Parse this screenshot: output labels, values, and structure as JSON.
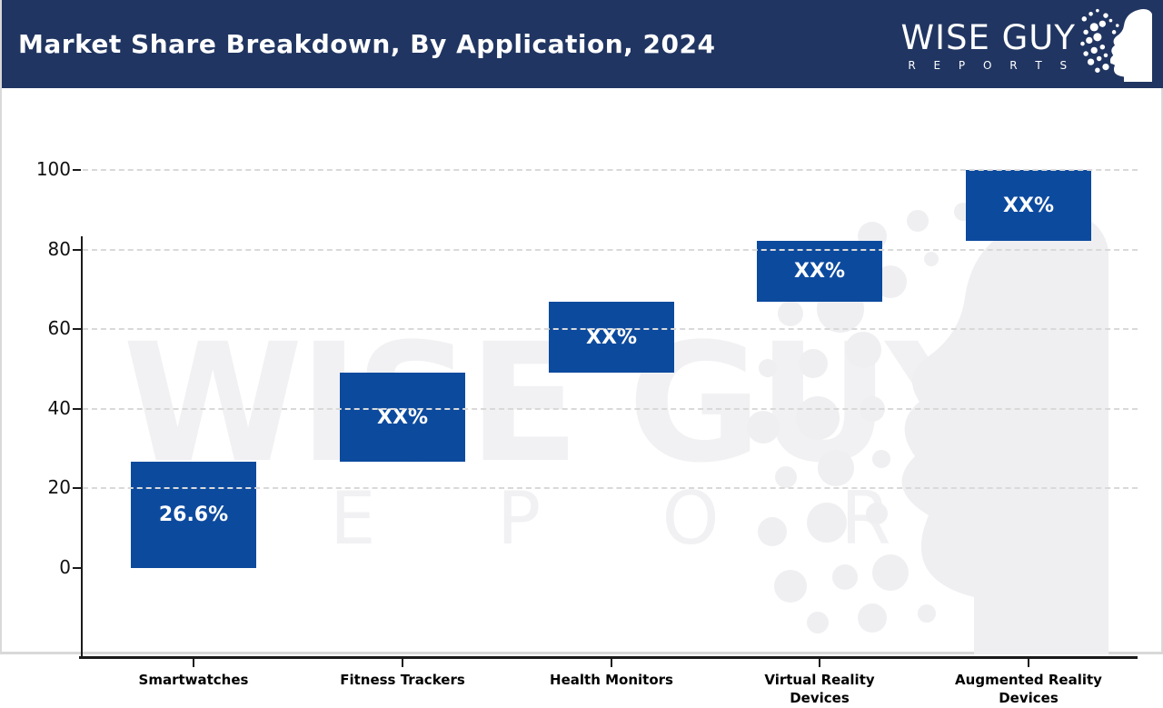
{
  "header": {
    "title": "Market Share Breakdown, By Application, 2024",
    "logo": {
      "line1": "WISE GUY",
      "line2": "R E P O R T S",
      "face_icon": "dotted-profile-face-icon"
    }
  },
  "watermark": {
    "line1": "WISE GUY",
    "line2": "R E P O R T S",
    "face_icon": "dotted-profile-face-watermark"
  },
  "colors": {
    "header_bg": "#203561",
    "bar": "#0c4a9e",
    "bar_label": "#ffffff",
    "grid": "#d9d9d9",
    "axis": "#1a1a1a",
    "watermark": "#f1f1f3",
    "frame_border": "#d9d9d9"
  },
  "chart_data": {
    "type": "bar",
    "subtype": "floating-waterfall",
    "title": "Market Share Breakdown, By Application, 2024",
    "xlabel": "",
    "ylabel": "",
    "ylim": [
      0,
      105
    ],
    "yticks": [
      0,
      20,
      40,
      60,
      80,
      100
    ],
    "grid": "horizontal-dashed",
    "legend": "none",
    "categories": [
      "Smartwatches",
      "Fitness Trackers",
      "Health Monitors",
      "Virtual Reality Devices",
      "Augmented Reality Devices"
    ],
    "series": [
      {
        "name": "Market Share (%)",
        "segments": [
          {
            "category": "Smartwatches",
            "start": 0,
            "end": 26.6,
            "label": "26.6%"
          },
          {
            "category": "Fitness Trackers",
            "start": 26.6,
            "end": 49.0,
            "label": "XX%"
          },
          {
            "category": "Health Monitors",
            "start": 49.0,
            "end": 66.9,
            "label": "XX%"
          },
          {
            "category": "Virtual Reality Devices",
            "start": 66.9,
            "end": 82.1,
            "label": "XX%"
          },
          {
            "category": "Augmented Reality Devices",
            "start": 82.1,
            "end": 100.0,
            "label": "XX%"
          }
        ]
      }
    ]
  }
}
